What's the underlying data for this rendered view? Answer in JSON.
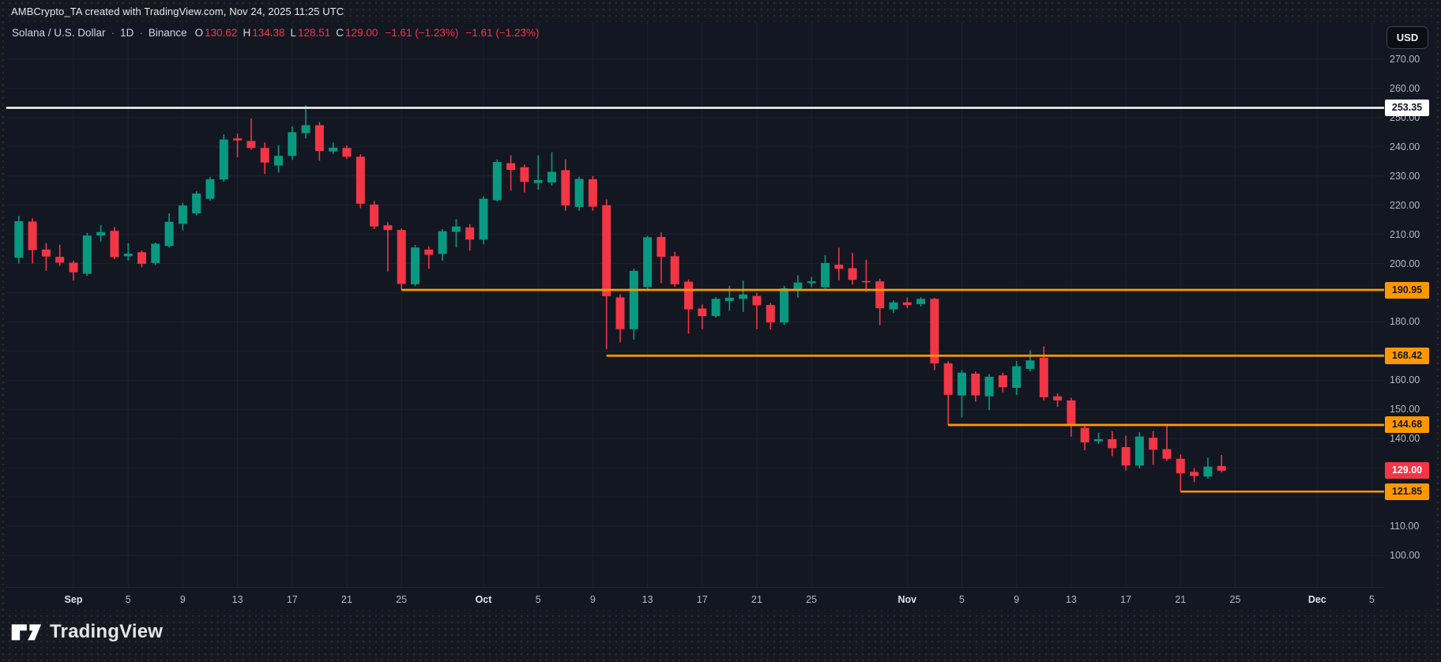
{
  "attribution": "AMBCrypto_TA created with TradingView.com, Nov 24, 2025 11:25 UTC",
  "legend": {
    "symbol": "Solana / U.S. Dollar",
    "separator": "·",
    "interval": "1D",
    "exchange": "Binance",
    "ohlc": [
      {
        "k": "O",
        "v": "130.62"
      },
      {
        "k": "H",
        "v": "134.38"
      },
      {
        "k": "L",
        "v": "128.51"
      },
      {
        "k": "C",
        "v": "129.00"
      }
    ],
    "change": "−1.61 (−1.23%)",
    "change_2": "−1.61 (−1.23%)"
  },
  "price_axis_button": "USD",
  "footer": {
    "brand": "TradingView"
  },
  "colors": {
    "up": "#089981",
    "down": "#f23645",
    "level_orange": "#ff9800",
    "level_white": "#ffffff",
    "chart_bg": "#131722",
    "grid": "#1d2130",
    "axis_text": "#b4b8c1",
    "month_text": "#dde1e8",
    "axis_separator": "#232838"
  },
  "chart_data": {
    "type": "candlestick",
    "title": "Solana / U.S. Dollar · 1D · Binance",
    "price_axis_visible_range": [
      100,
      270
    ],
    "grid_prices": [
      100,
      110,
      120,
      130,
      140,
      150,
      160,
      170,
      180,
      190,
      200,
      210,
      220,
      230,
      240,
      250,
      260,
      270
    ],
    "label_prices": [
      270,
      260,
      250,
      240,
      230,
      220,
      210,
      200,
      180,
      160,
      150,
      140,
      120,
      110,
      100
    ],
    "ticks": [
      {
        "label": "Sep",
        "day": 0,
        "month": true
      },
      {
        "label": "5",
        "day": 4
      },
      {
        "label": "9",
        "day": 8
      },
      {
        "label": "13",
        "day": 12
      },
      {
        "label": "17",
        "day": 16
      },
      {
        "label": "21",
        "day": 20
      },
      {
        "label": "25",
        "day": 24
      },
      {
        "label": "Oct",
        "day": 30,
        "month": true
      },
      {
        "label": "5",
        "day": 34
      },
      {
        "label": "9",
        "day": 38
      },
      {
        "label": "13",
        "day": 42
      },
      {
        "label": "17",
        "day": 46
      },
      {
        "label": "21",
        "day": 50
      },
      {
        "label": "25",
        "day": 54
      },
      {
        "label": "Nov",
        "day": 61,
        "month": true
      },
      {
        "label": "5",
        "day": 65
      },
      {
        "label": "9",
        "day": 69
      },
      {
        "label": "13",
        "day": 73
      },
      {
        "label": "17",
        "day": 77
      },
      {
        "label": "21",
        "day": 81
      },
      {
        "label": "25",
        "day": 85
      },
      {
        "label": "Dec",
        "day": 91,
        "month": true
      },
      {
        "label": "5",
        "day": 95
      }
    ],
    "levels": [
      {
        "price": 253.35,
        "label": "253.35",
        "line_color": "#ffffff",
        "label_bg": "#ffffff",
        "label_text": "#131722",
        "start_index": null,
        "thickness": 2.5
      },
      {
        "price": 190.95,
        "label": "190.95",
        "line_color": "#ff9800",
        "label_bg": "#ff9800",
        "label_text": "#131722",
        "start_index": 28,
        "thickness": 2.8
      },
      {
        "price": 168.42,
        "label": "168.42",
        "line_color": "#ff9800",
        "label_bg": "#ff9800",
        "label_text": "#131722",
        "start_index": 43,
        "thickness": 2.8
      },
      {
        "price": 144.68,
        "label": "144.68",
        "line_color": "#ff9800",
        "label_bg": "#ff9800",
        "label_text": "#131722",
        "start_index": 68,
        "thickness": 2.8
      },
      {
        "price": 121.85,
        "label": "121.85",
        "line_color": "#ff9800",
        "label_bg": "#ff9800",
        "label_text": "#131722",
        "start_index": 85,
        "thickness": 2.5
      }
    ],
    "current_price": {
      "price": 129.0,
      "label": "129.00",
      "bg": "#f23645",
      "fg": "#ffffff"
    },
    "candles": [
      [
        "Aug 28",
        202.0,
        216.3,
        200.0,
        214.5
      ],
      [
        "Aug 29",
        214.4,
        215.5,
        200.0,
        204.6
      ],
      [
        "Aug 30",
        204.8,
        207.0,
        197.5,
        202.4
      ],
      [
        "Aug 31",
        202.3,
        206.4,
        199.2,
        200.3
      ],
      [
        "Sep 1",
        200.3,
        201.0,
        194.2,
        197.0
      ],
      [
        "Sep 2",
        196.5,
        210.5,
        195.8,
        209.6
      ],
      [
        "Sep 3",
        209.6,
        213.2,
        207.5,
        210.8
      ],
      [
        "Sep 4",
        211.2,
        212.5,
        201.5,
        202.2
      ],
      [
        "Sep 5",
        202.5,
        207.0,
        201.0,
        203.4
      ],
      [
        "Sep 6",
        203.9,
        204.5,
        198.7,
        199.9
      ],
      [
        "Sep 7",
        200.2,
        207.2,
        199.5,
        206.8
      ],
      [
        "Sep 8",
        206.0,
        217.2,
        205.5,
        214.3
      ],
      [
        "Sep 9",
        213.6,
        220.8,
        211.4,
        219.9
      ],
      [
        "Sep 10",
        217.2,
        224.8,
        216.5,
        224.0
      ],
      [
        "Sep 11",
        222.2,
        229.6,
        221.5,
        228.9
      ],
      [
        "Sep 12",
        228.8,
        244.3,
        228.0,
        242.5
      ],
      [
        "Sep 13",
        242.9,
        244.5,
        236.4,
        242.2
      ],
      [
        "Sep 14",
        242.0,
        249.7,
        239.0,
        239.6
      ],
      [
        "Sep 15",
        239.6,
        241.5,
        230.7,
        234.6
      ],
      [
        "Sep 16",
        233.6,
        240.6,
        231.2,
        236.9
      ],
      [
        "Sep 17",
        236.9,
        247.0,
        235.5,
        245.0
      ],
      [
        "Sep 18",
        244.7,
        254.3,
        242.9,
        247.4
      ],
      [
        "Sep 19",
        247.4,
        248.5,
        235.2,
        238.6
      ],
      [
        "Sep 20",
        238.4,
        241.5,
        237.6,
        239.7
      ],
      [
        "Sep 21",
        239.6,
        240.5,
        235.8,
        236.6
      ],
      [
        "Sep 22",
        236.6,
        237.5,
        219.0,
        220.5
      ],
      [
        "Sep 23",
        220.2,
        221.5,
        211.8,
        212.7
      ],
      [
        "Sep 24",
        213.1,
        214.2,
        197.3,
        211.5
      ],
      [
        "Sep 25",
        211.5,
        212.0,
        190.95,
        193.0
      ],
      [
        "Sep 26",
        192.9,
        206.4,
        192.2,
        205.5
      ],
      [
        "Sep 27",
        204.8,
        205.9,
        198.2,
        203.0
      ],
      [
        "Sep 28",
        203.3,
        211.8,
        201.0,
        211.1
      ],
      [
        "Sep 29",
        210.9,
        215.2,
        205.5,
        212.7
      ],
      [
        "Sep 30",
        212.4,
        213.5,
        204.4,
        208.2
      ],
      [
        "Oct 1",
        208.2,
        223.1,
        206.6,
        222.2
      ],
      [
        "Oct 2",
        221.7,
        235.7,
        221.3,
        234.8
      ],
      [
        "Oct 3",
        234.4,
        237.1,
        225.0,
        232.1
      ],
      [
        "Oct 4",
        233.0,
        233.9,
        224.4,
        228.0
      ],
      [
        "Oct 5",
        227.6,
        237.1,
        225.3,
        228.6
      ],
      [
        "Oct 6",
        227.8,
        238.2,
        226.7,
        231.4
      ],
      [
        "Oct 7",
        232.0,
        235.7,
        218.1,
        219.9
      ],
      [
        "Oct 8",
        219.4,
        229.8,
        218.1,
        229.0
      ],
      [
        "Oct 9",
        228.9,
        230.0,
        218.1,
        219.5
      ],
      [
        "Oct 10",
        220.0,
        222.0,
        170.7,
        188.8
      ],
      [
        "Oct 11",
        188.4,
        189.5,
        173.0,
        177.5
      ],
      [
        "Oct 12",
        177.5,
        198.2,
        173.9,
        197.5
      ],
      [
        "Oct 13",
        192.0,
        209.5,
        190.6,
        209.0
      ],
      [
        "Oct 14",
        209.1,
        210.7,
        193.3,
        202.3
      ],
      [
        "Oct 15",
        202.5,
        204.0,
        192.0,
        192.9
      ],
      [
        "Oct 16",
        193.8,
        194.5,
        176.0,
        184.3
      ],
      [
        "Oct 17",
        184.6,
        186.0,
        177.5,
        182.0
      ],
      [
        "Oct 18",
        182.0,
        188.5,
        181.5,
        187.9
      ],
      [
        "Oct 19",
        187.2,
        192.4,
        183.8,
        188.3
      ],
      [
        "Oct 20",
        187.9,
        194.2,
        183.4,
        189.4
      ],
      [
        "Oct 21",
        188.9,
        189.9,
        177.5,
        185.7
      ],
      [
        "Oct 22",
        185.8,
        186.5,
        177.4,
        179.8
      ],
      [
        "Oct 23",
        179.8,
        192.4,
        178.9,
        191.5
      ],
      [
        "Oct 24",
        190.9,
        196.0,
        188.3,
        193.5
      ],
      [
        "Oct 25",
        193.3,
        195.4,
        191.9,
        193.9
      ],
      [
        "Oct 26",
        191.9,
        202.9,
        191.2,
        200.2
      ],
      [
        "Oct 27",
        199.6,
        205.4,
        194.3,
        198.2
      ],
      [
        "Oct 28",
        198.4,
        203.6,
        192.8,
        194.4
      ],
      [
        "Oct 29",
        194.0,
        201.3,
        190.3,
        193.6
      ],
      [
        "Oct 30",
        193.9,
        194.8,
        178.9,
        184.7
      ],
      [
        "Oct 31",
        184.3,
        187.4,
        183.0,
        186.7
      ],
      [
        "Nov 1",
        186.7,
        188.3,
        184.7,
        185.8
      ],
      [
        "Nov 2",
        186.1,
        188.5,
        185.3,
        187.9
      ],
      [
        "Nov 3",
        187.9,
        188.3,
        163.5,
        165.8
      ],
      [
        "Nov 4",
        165.8,
        166.5,
        144.68,
        155.0
      ],
      [
        "Nov 5",
        154.8,
        163.5,
        147.3,
        162.6
      ],
      [
        "Nov 6",
        162.3,
        163.0,
        152.7,
        154.8
      ],
      [
        "Nov 7",
        154.5,
        162.1,
        149.7,
        161.2
      ],
      [
        "Nov 8",
        161.7,
        162.6,
        155.9,
        157.6
      ],
      [
        "Nov 9",
        157.4,
        166.6,
        155.0,
        164.8
      ],
      [
        "Nov 10",
        163.9,
        170.3,
        163.0,
        166.8
      ],
      [
        "Nov 11",
        167.7,
        171.6,
        153.1,
        154.2
      ],
      [
        "Nov 12",
        154.5,
        155.5,
        150.9,
        153.1
      ],
      [
        "Nov 13",
        153.1,
        154.0,
        140.7,
        144.5
      ],
      [
        "Nov 14",
        143.7,
        144.5,
        136.0,
        138.7
      ],
      [
        "Nov 15",
        139.1,
        142.0,
        138.2,
        139.8
      ],
      [
        "Nov 16",
        139.8,
        142.5,
        134.0,
        136.7
      ],
      [
        "Nov 17",
        137.1,
        141.0,
        129.1,
        130.8
      ],
      [
        "Nov 18",
        130.8,
        142.2,
        129.8,
        140.7
      ],
      [
        "Nov 19",
        140.3,
        142.6,
        131.0,
        136.2
      ],
      [
        "Nov 20",
        136.4,
        144.6,
        132.4,
        133.1
      ],
      [
        "Nov 21",
        133.1,
        134.6,
        121.9,
        128.1
      ],
      [
        "Nov 22",
        128.6,
        129.9,
        125.1,
        127.2
      ],
      [
        "Nov 23",
        127.0,
        133.5,
        126.3,
        130.4
      ],
      [
        "Nov 24",
        130.62,
        134.38,
        128.51,
        129.0
      ]
    ]
  }
}
